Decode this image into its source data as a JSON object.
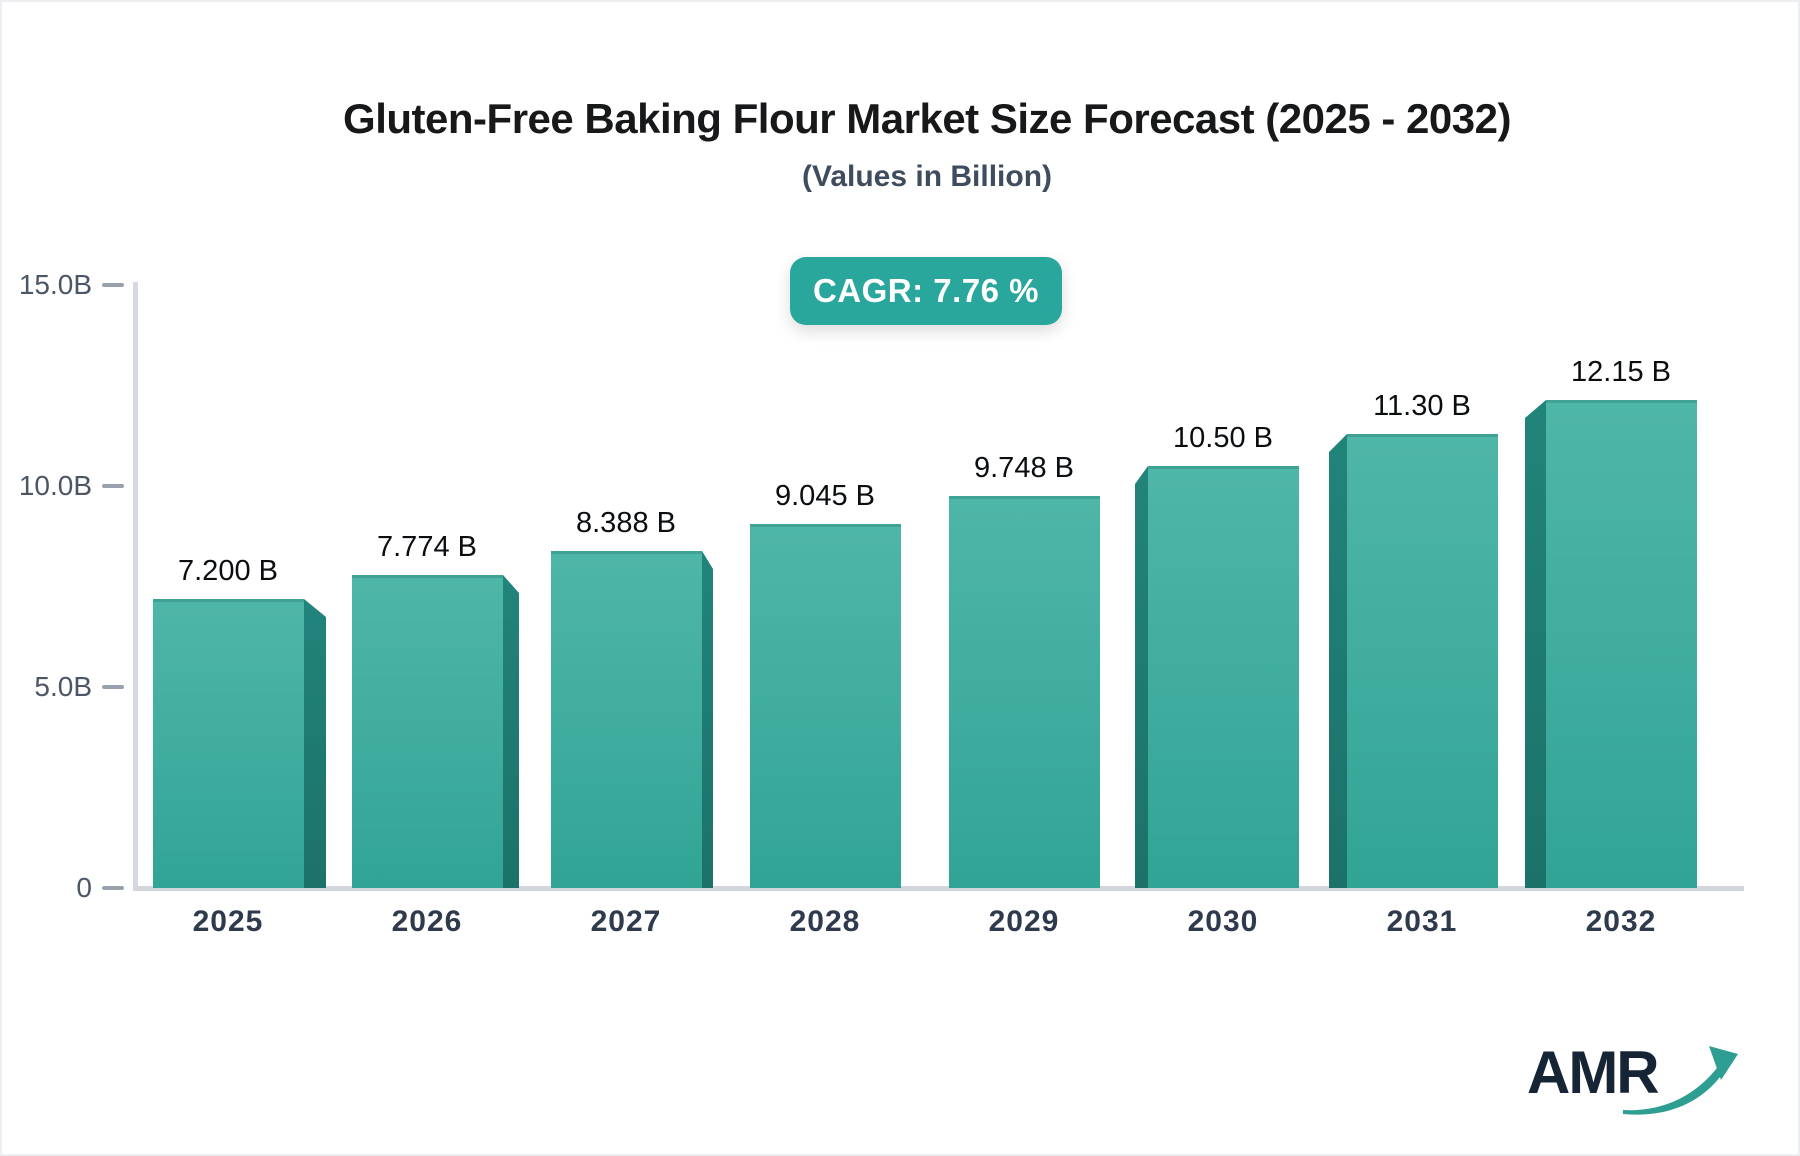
{
  "header": {
    "title": "Gluten-Free Baking Flour Market Size Forecast (2025 - 2032)",
    "subtitle": "(Values in Billion)",
    "badge": "CAGR: 7.76 %"
  },
  "chart_data": {
    "type": "bar",
    "title": "Gluten-Free Baking Flour Market Size Forecast (2025 - 2032)",
    "subtitle": "(Values in Billion)",
    "categories": [
      "2025",
      "2026",
      "2027",
      "2028",
      "2029",
      "2030",
      "2031",
      "2032"
    ],
    "values": [
      7.2,
      7.774,
      8.388,
      9.045,
      9.748,
      10.5,
      11.3,
      12.15
    ],
    "value_labels": [
      "7.200 B",
      "7.774 B",
      "8.388 B",
      "9.045 B",
      "9.748 B",
      "10.50 B",
      "11.30 B",
      "12.15 B"
    ],
    "unit": "Billion",
    "cagr": "7.76 %",
    "xlabel": "",
    "ylabel": "",
    "ylim": [
      0,
      15
    ],
    "yticks": [
      {
        "label": "15.0B",
        "value": 15
      },
      {
        "label": "10.0B",
        "value": 10
      },
      {
        "label": "5.0B",
        "value": 5
      },
      {
        "label": "0",
        "value": 0
      }
    ],
    "grid": false,
    "legend": false
  },
  "logo": {
    "text": "AMR",
    "arrow_icon": "trend-up-arrow"
  },
  "colors": {
    "bar_face_top": "#4fb6a8",
    "bar_face_bottom": "#31a496",
    "bar_side": "#1f7c70",
    "badge_bg": "#2aa79c",
    "badge_text": "#ffffff",
    "axis_line": "#d6dae0",
    "tick_label": "#4c5666",
    "year_label": "#2f3b4d",
    "title_text": "#17181a",
    "subtitle_text": "#3f4c5e",
    "logo_text": "#152535",
    "logo_arrow": "#2f9e92"
  }
}
